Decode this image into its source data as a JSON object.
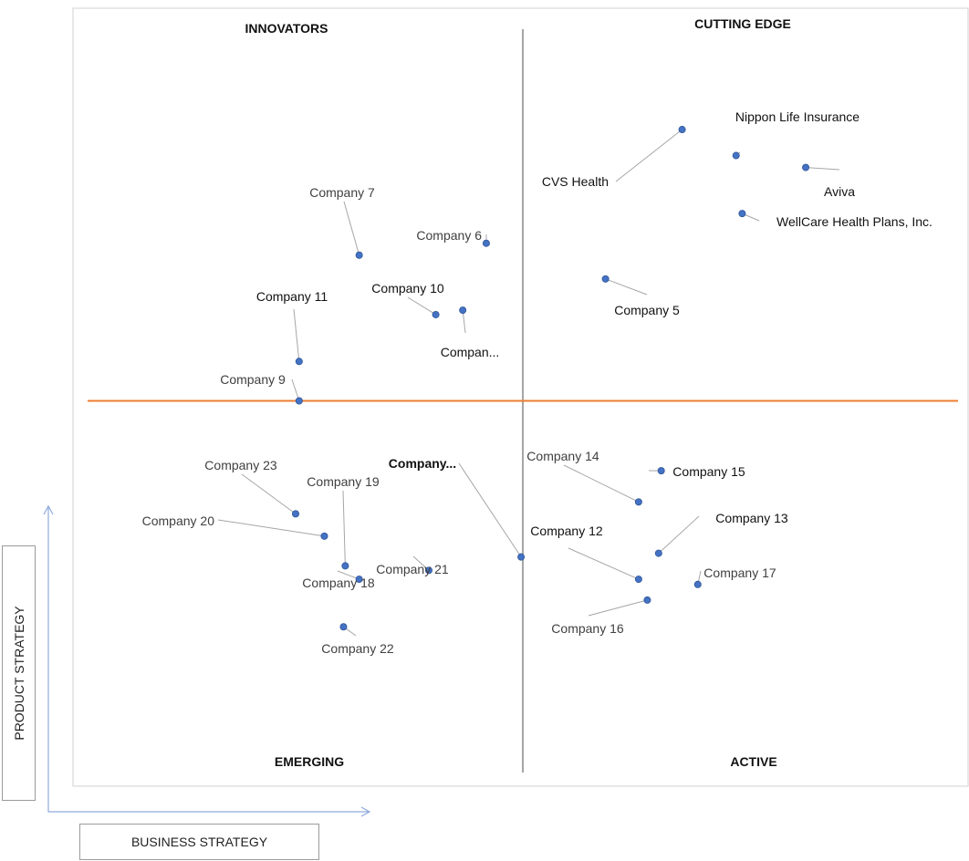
{
  "chart_data": {
    "type": "scatter",
    "quadrants": {
      "top_left": "INNOVATORS",
      "top_right": "CUTTING EDGE",
      "bottom_left": "EMERGING",
      "bottom_right": "ACTIVE"
    },
    "xlabel": "BUSINESS STRATEGY",
    "ylabel": "PRODUCT STRATEGY",
    "xlim": [
      0,
      10
    ],
    "ylim": [
      0,
      10
    ],
    "divider_x": 5,
    "divider_y": 5,
    "colors": {
      "point": "#4472c4",
      "h_divider": "#ed7d31",
      "v_divider": "#a6a6a6",
      "leader": "#a6a6a6",
      "axis_arrow": "#8faadc"
    },
    "points": [
      {
        "name": "Nippon Life Insurance",
        "x": 7.45,
        "y": 8.3
      },
      {
        "name": "CVS Health",
        "x": 6.83,
        "y": 8.65
      },
      {
        "name": "Aviva",
        "x": 8.25,
        "y": 8.14
      },
      {
        "name": "WellCare Health Plans, Inc.",
        "x": 7.52,
        "y": 7.52
      },
      {
        "name": "Company 5",
        "x": 5.95,
        "y": 6.64
      },
      {
        "name": "Company 7",
        "x": 3.12,
        "y": 6.96
      },
      {
        "name": "Company 6",
        "x": 4.58,
        "y": 7.12
      },
      {
        "name": "Company 10",
        "x": 4.0,
        "y": 6.16
      },
      {
        "name": "Compan...",
        "x": 4.31,
        "y": 6.22
      },
      {
        "name": "Company 11",
        "x": 2.43,
        "y": 5.53
      },
      {
        "name": "Company 9",
        "x": 2.43,
        "y": 5.0
      },
      {
        "name": "Company 23",
        "x": 2.39,
        "y": 3.48
      },
      {
        "name": "Company 20",
        "x": 2.72,
        "y": 3.18
      },
      {
        "name": "Company 19",
        "x": 2.96,
        "y": 2.78
      },
      {
        "name": "Company 18",
        "x": 3.12,
        "y": 2.6
      },
      {
        "name": "Company 21",
        "x": 3.92,
        "y": 2.72
      },
      {
        "name": "Company...",
        "x": 4.98,
        "y": 2.9
      },
      {
        "name": "Company 22",
        "x": 2.94,
        "y": 1.96
      },
      {
        "name": "Company 15",
        "x": 6.59,
        "y": 4.06
      },
      {
        "name": "Company 14",
        "x": 6.33,
        "y": 3.64
      },
      {
        "name": "Company 13",
        "x": 6.56,
        "y": 2.95
      },
      {
        "name": "Company 12",
        "x": 6.33,
        "y": 2.6
      },
      {
        "name": "Company 17",
        "x": 7.01,
        "y": 2.53
      },
      {
        "name": "Company 16",
        "x": 6.43,
        "y": 2.32
      }
    ]
  }
}
